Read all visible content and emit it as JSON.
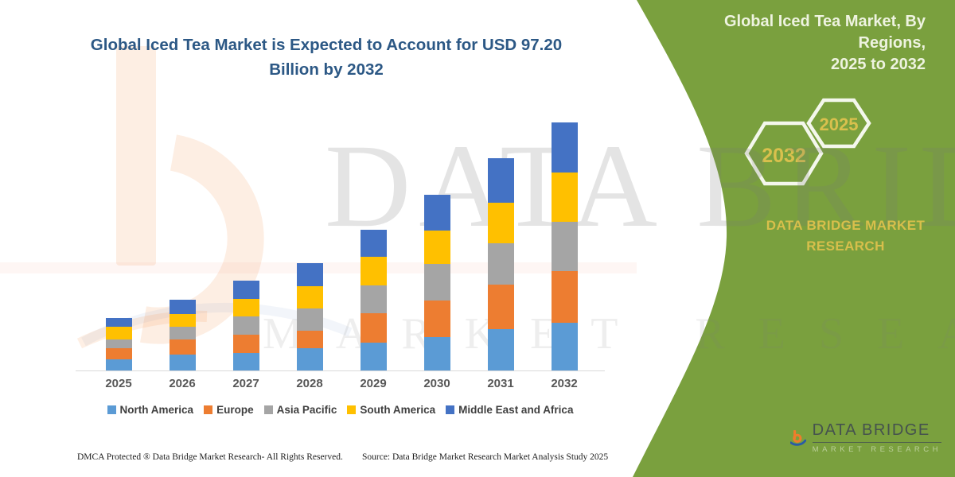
{
  "main": {
    "title": "Global Iced Tea Market is Expected to Account for USD 97.20 Billion by 2032"
  },
  "chart_data": {
    "type": "bar",
    "stacked": true,
    "title": "Global Iced Tea Market is Expected to Account for USD 97.20 Billion by 2032",
    "categories": [
      "2025",
      "2026",
      "2027",
      "2028",
      "2029",
      "2030",
      "2031",
      "2032"
    ],
    "series": [
      {
        "name": "North America",
        "color": "#5b9bd5",
        "values": [
          4.5,
          6.2,
          6.9,
          8.6,
          10.9,
          13.0,
          16.1,
          18.7
        ]
      },
      {
        "name": "Europe",
        "color": "#ed7d31",
        "values": [
          4.2,
          6.0,
          7.0,
          7.1,
          11.4,
          14.5,
          17.4,
          20.3
        ]
      },
      {
        "name": "Asia Pacific",
        "color": "#a5a5a5",
        "values": [
          3.6,
          4.9,
          7.3,
          8.5,
          10.9,
          14.2,
          16.5,
          19.3
        ]
      },
      {
        "name": "South America",
        "color": "#ffc000",
        "values": [
          4.7,
          5.0,
          6.8,
          8.8,
          11.4,
          13.0,
          15.9,
          19.3
        ]
      },
      {
        "name": "Middle East and Africa",
        "color": "#4472c4",
        "values": [
          3.6,
          5.5,
          7.3,
          9.0,
          10.6,
          14.3,
          17.4,
          19.6
        ]
      }
    ],
    "totals": [
      20.6,
      27.6,
      35.3,
      42.0,
      55.2,
      69.0,
      83.3,
      97.2
    ],
    "xlabel": "",
    "ylabel": "",
    "ylim": [
      0,
      100
    ],
    "unit": "USD Billion",
    "grid": false,
    "legend_position": "bottom"
  },
  "side_panel": {
    "title_line1": "Global Iced Tea Market, By Regions,",
    "title_line2": "2025 to 2032",
    "hexagons": [
      {
        "label": "2032"
      },
      {
        "label": "2025"
      }
    ],
    "brand_lines": [
      "DATA BRIDGE MARKET",
      "RESEARCH"
    ],
    "colors": {
      "panel_green": "#7aa03e",
      "accent_yellow": "#d8bf4b"
    }
  },
  "watermark": {
    "line1": "DATA BRIDGE",
    "line2": "MARKET RESEARCH"
  },
  "logo": {
    "brand": "DATA BRIDGE",
    "sub": "MARKET RESEARCH"
  },
  "footer": {
    "left": "DMCA Protected ® Data Bridge Market Research-  All Rights Reserved.",
    "source": "Source: Data Bridge Market Research  Market Analysis Study 2025"
  }
}
